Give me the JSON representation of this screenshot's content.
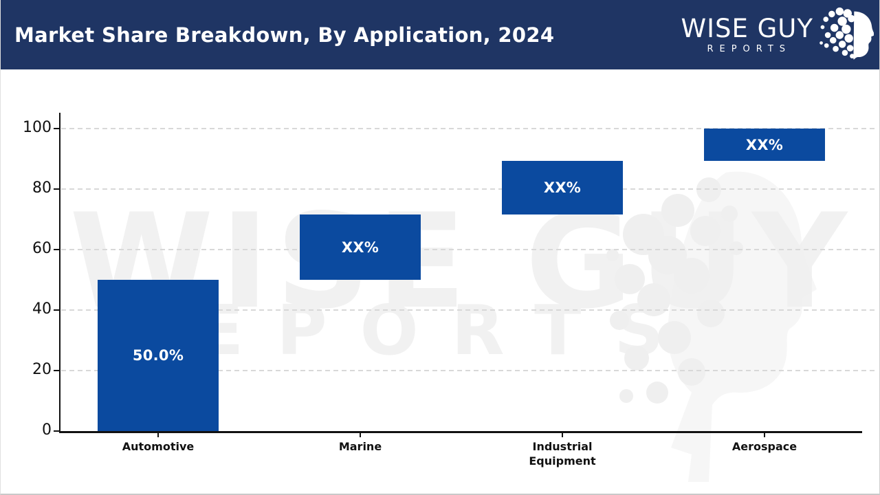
{
  "header": {
    "title": "Market Share Breakdown, By Application, 2024",
    "logo": {
      "line1": "WISE GUY",
      "line2": "REPORTS"
    }
  },
  "watermark": {
    "line1": "WISE GUY",
    "line2": "REPORTS"
  },
  "colors": {
    "header_bg": "#1f3564",
    "bar": "#0b4a9f",
    "bar_label": "#ffffff",
    "grid": "#d8d8d8",
    "axis": "#111111",
    "watermark": "#f1f1f1"
  },
  "chart_data": {
    "type": "bar",
    "subtype": "waterfall",
    "title": "Market Share Breakdown, By Application, 2024",
    "xlabel": "",
    "ylabel": "",
    "ylim": [
      0,
      105
    ],
    "yticks": [
      0,
      20,
      40,
      60,
      80,
      100
    ],
    "grid": "horizontal-dashed",
    "legend": "none",
    "categories": [
      "Automotive",
      "Marine",
      "Industrial\nEquipment",
      "Aerospace"
    ],
    "segments": [
      {
        "category": "Automotive",
        "start": 0,
        "end": 50,
        "label": "50.0%"
      },
      {
        "category": "Marine",
        "start": 50,
        "end": 71.5,
        "label": "XX%"
      },
      {
        "category": "Industrial\nEquipment",
        "start": 71.5,
        "end": 89.3,
        "label": "XX%"
      },
      {
        "category": "Aerospace",
        "start": 89.3,
        "end": 100,
        "label": "XX%"
      }
    ]
  }
}
